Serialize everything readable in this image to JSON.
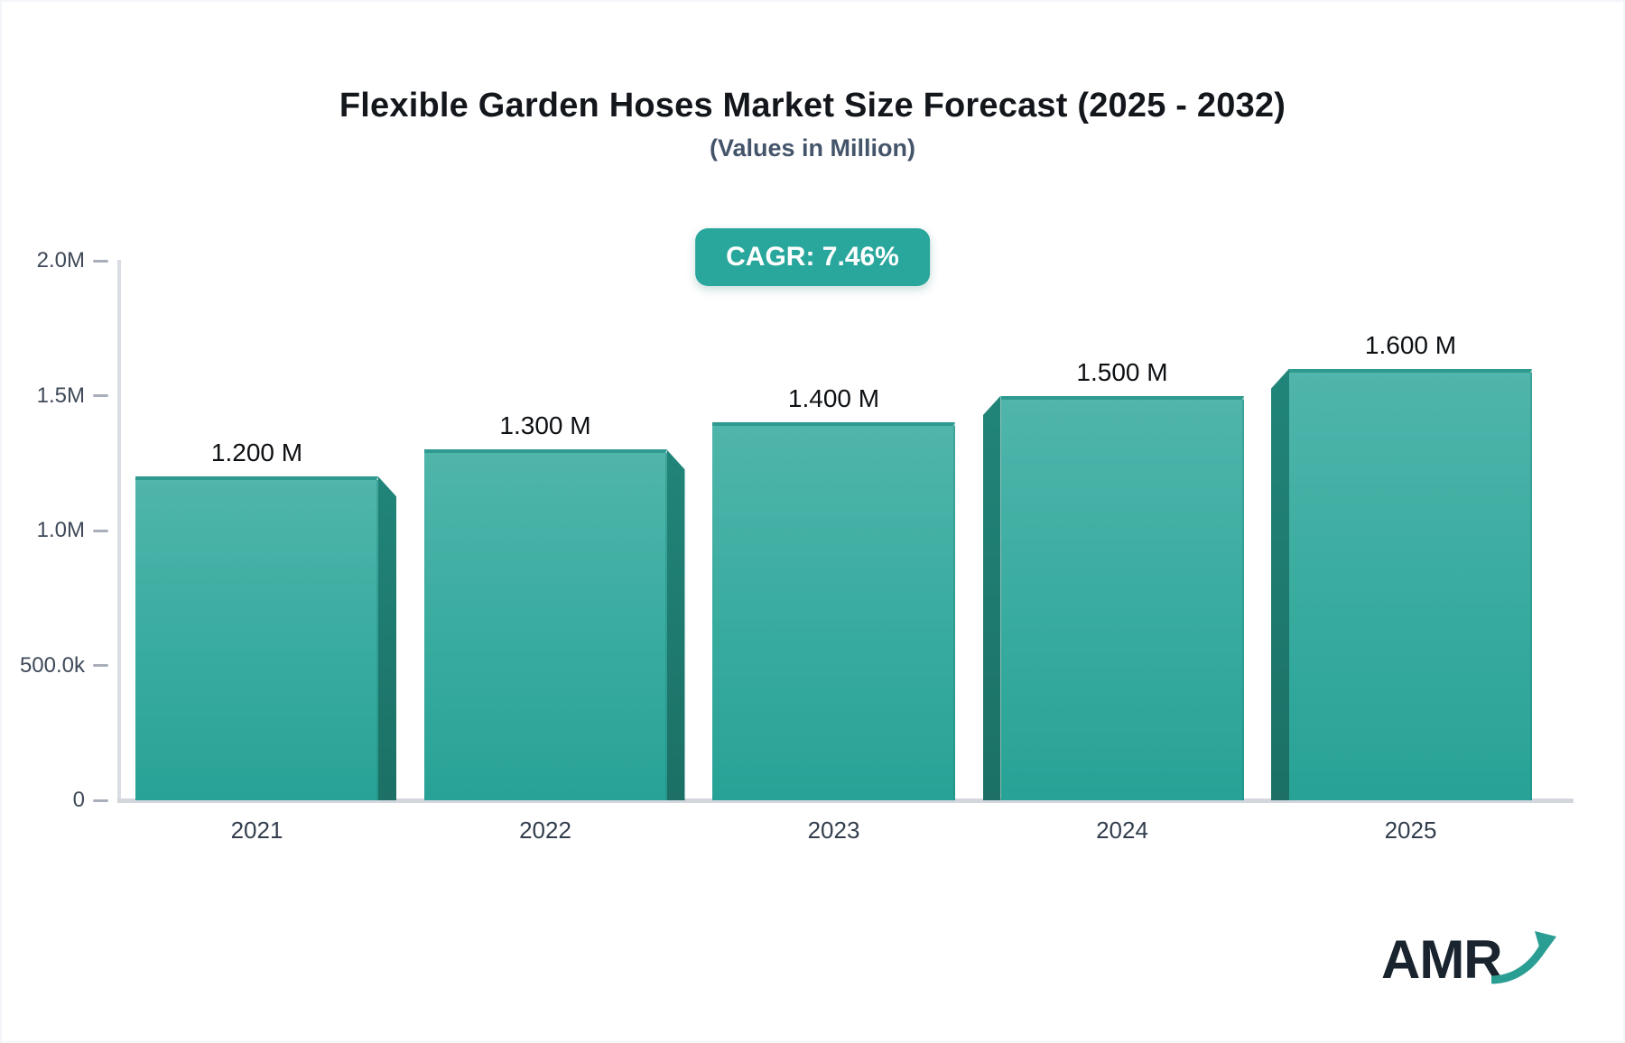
{
  "badge": {
    "label": "CAGR: 7.46%"
  },
  "logo": {
    "text": "AMR"
  },
  "colors": {
    "bar_top": "#50b5ab",
    "bar_bottom": "#28a296",
    "bar_side": "#1e7a71",
    "badge_bg": "#2aa79c",
    "axis": "#d8dbe1",
    "logo_arrow": "#2b9e94"
  },
  "chart_data": {
    "type": "bar",
    "title": "Flexible Garden Hoses Market Size Forecast (2025 - 2032)",
    "subtitle": "(Values in Million)",
    "categories": [
      "2021",
      "2022",
      "2023",
      "2024",
      "2025"
    ],
    "values": [
      1200000,
      1300000,
      1400000,
      1500000,
      1600000
    ],
    "value_labels": [
      "1.200 M",
      "1.300 M",
      "1.400 M",
      "1.500 M",
      "1.600 M"
    ],
    "unit": "Million",
    "ylim": [
      0,
      2000000
    ],
    "yticks": [
      {
        "value": 0,
        "label": "0"
      },
      {
        "value": 500000,
        "label": "500.0k"
      },
      {
        "value": 1000000,
        "label": "1.0M"
      },
      {
        "value": 1500000,
        "label": "1.5M"
      },
      {
        "value": 2000000,
        "label": "2.0M"
      }
    ],
    "grid": false,
    "legend": false,
    "cagr_label": "CAGR: 7.46%"
  }
}
